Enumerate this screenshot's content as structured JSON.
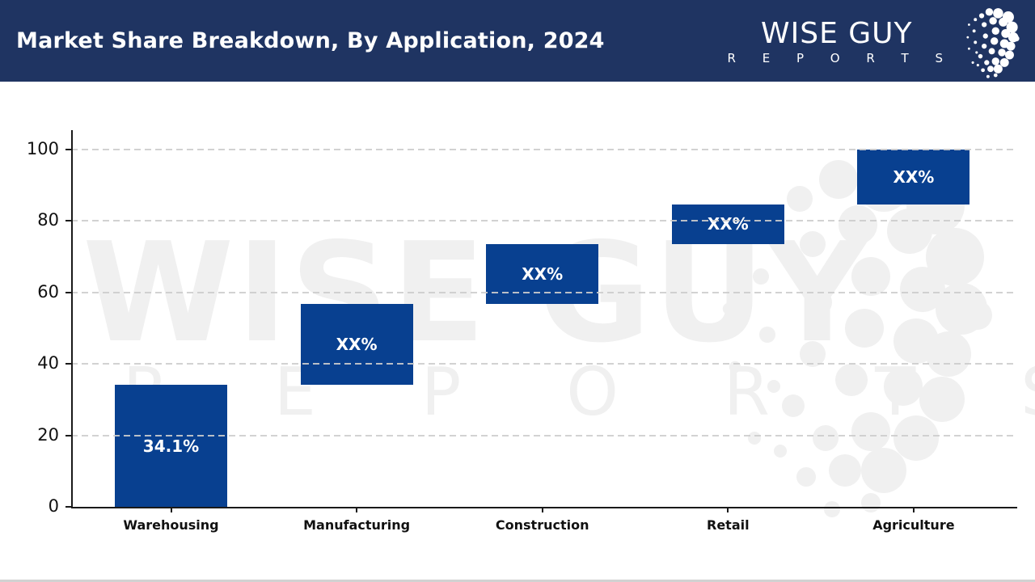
{
  "header": {
    "title": "Market Share Breakdown, By Application, 2024",
    "logo": {
      "line1": "WISE GUY",
      "line2": "R E P O R T S"
    }
  },
  "watermark": {
    "line1": "WISE GUY",
    "line2": "R E P O R T S"
  },
  "colors": {
    "header_bg": "#1f3462",
    "bar": "#084090",
    "bar_label_text": "#ffffff",
    "watermark": "#f0f0f0",
    "axis": "#1a1a1a",
    "gridline": "#cdcdcd"
  },
  "chart_data": {
    "type": "bar",
    "subtype": "waterfall",
    "title": "Market Share Breakdown, By Application, 2024",
    "categories": [
      "Warehousing",
      "Manufacturing",
      "Construction",
      "Retail",
      "Agriculture"
    ],
    "values": [
      34.1,
      22.7,
      16.8,
      11.1,
      15.3
    ],
    "segments": [
      {
        "category": "Warehousing",
        "start": 0,
        "end": 34.1,
        "label": "34.1%"
      },
      {
        "category": "Manufacturing",
        "start": 34.1,
        "end": 56.8,
        "label": "XX%"
      },
      {
        "category": "Construction",
        "start": 56.8,
        "end": 73.6,
        "label": "XX%"
      },
      {
        "category": "Retail",
        "start": 73.6,
        "end": 84.7,
        "label": "XX%"
      },
      {
        "category": "Agriculture",
        "start": 84.7,
        "end": 100,
        "label": "XX%"
      }
    ],
    "yticks": [
      0,
      20,
      40,
      60,
      80,
      100
    ],
    "ylim": [
      0,
      105
    ],
    "xlabel": "",
    "ylabel": "",
    "grid": true,
    "legend": null
  }
}
